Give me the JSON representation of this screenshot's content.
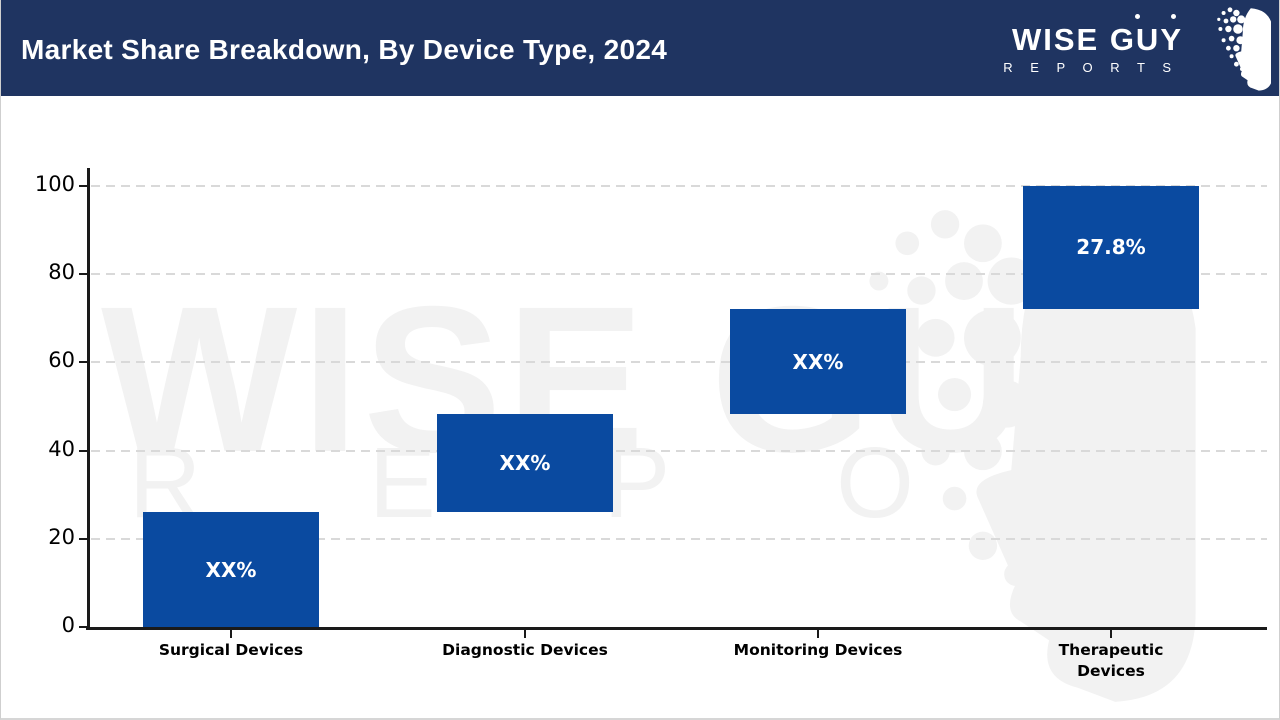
{
  "header": {
    "title": "Market Share Breakdown, By Device Type, 2024",
    "bg_color": "#1f3461",
    "brand": {
      "name": "WISE GUY",
      "sub": "R E P O R T S"
    }
  },
  "watermark": {
    "line1": "WISE GUY",
    "line2": "R E P O R T S"
  },
  "chart_data": {
    "type": "bar",
    "subtype": "waterfall",
    "title": "Market Share Breakdown, By Device Type, 2024",
    "categories": [
      "Surgical Devices",
      "Diagnostic Devices",
      "Monitoring Devices",
      "Therapeutic Devices"
    ],
    "category_lines": [
      [
        "Surgical Devices"
      ],
      [
        "Diagnostic Devices"
      ],
      [
        "Monitoring Devices"
      ],
      [
        "Therapeutic",
        "Devices"
      ]
    ],
    "segments": [
      {
        "category": "Surgical Devices",
        "start": 0,
        "end": 26,
        "value": 26,
        "label": "XX%"
      },
      {
        "category": "Diagnostic Devices",
        "start": 26,
        "end": 48.2,
        "value": 22.2,
        "label": "XX%"
      },
      {
        "category": "Monitoring Devices",
        "start": 48.2,
        "end": 72.2,
        "value": 24,
        "label": "XX%"
      },
      {
        "category": "Therapeutic Devices",
        "start": 72.2,
        "end": 100,
        "value": 27.8,
        "label": "27.8%"
      }
    ],
    "xlabel": "",
    "ylabel": "",
    "ylim": [
      0,
      100
    ],
    "yticks": [
      0,
      20,
      40,
      60,
      80,
      100
    ],
    "grid": "dashed-horizontal",
    "legend": "none",
    "bar_color": "#0a4aa0",
    "bar_label_color": "#ffffff",
    "axis_color": "#1a1a1a",
    "gridline_color": "#d9d9d9"
  }
}
